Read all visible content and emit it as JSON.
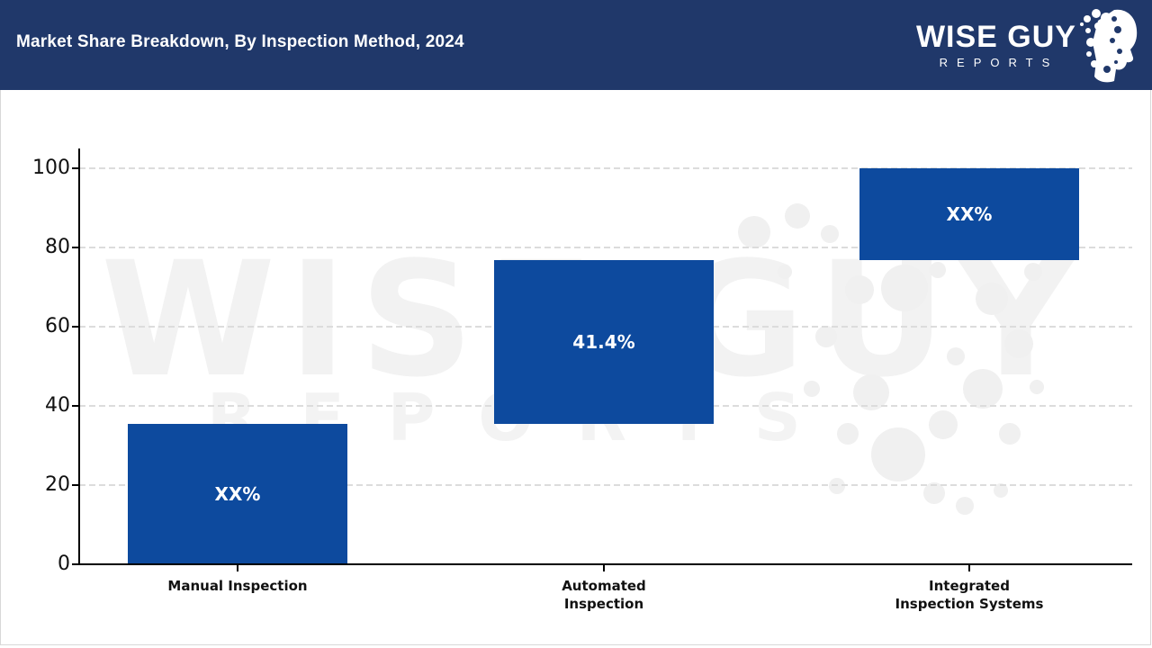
{
  "header": {
    "title": "Market Share Breakdown, By Inspection Method, 2024",
    "bg_color": "#20386a",
    "logo": {
      "line1": "WISE GUY",
      "line2": "REPORTS"
    }
  },
  "watermark": {
    "line1": "WISE GUY",
    "line2": "REPORTS"
  },
  "chart_data": {
    "type": "bar",
    "subtype": "waterfall",
    "title": "Market Share Breakdown, By Inspection Method, 2024",
    "categories": [
      "Manual Inspection",
      "Automated\nInspection",
      "Integrated\nInspection Systems"
    ],
    "values": [
      35.5,
      41.4,
      23.2
    ],
    "starts": [
      0,
      35.5,
      76.9
    ],
    "bar_labels": [
      "XX%",
      "41.4%",
      "XX%"
    ],
    "yticks": [
      0,
      20,
      40,
      60,
      80,
      100
    ],
    "ylim": [
      0,
      105
    ],
    "xlabel": "",
    "ylabel": "",
    "bar_color": "#0d4a9e",
    "grid": "horizontal-dashed",
    "legend": "none"
  }
}
